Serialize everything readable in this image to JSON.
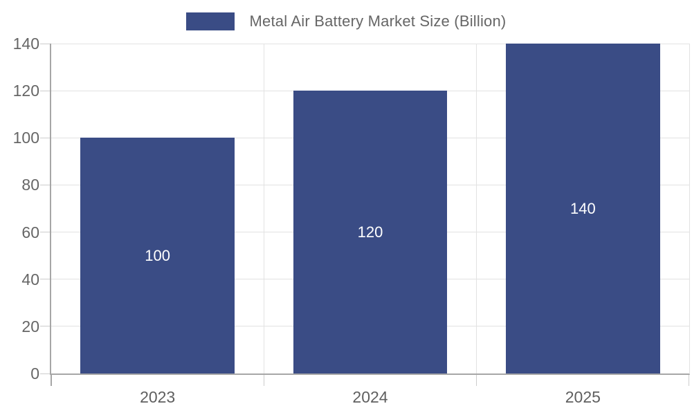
{
  "legend": {
    "label": "Metal Air Battery Market Size (Billion)"
  },
  "chart_data": {
    "type": "bar",
    "title": "Metal Air Battery Market Size (Billion)",
    "categories": [
      "2023",
      "2024",
      "2025"
    ],
    "values": [
      100,
      120,
      140
    ],
    "data_labels": [
      "100",
      "120",
      "140"
    ],
    "xlabel": "",
    "ylabel": "",
    "ylim": [
      0,
      140
    ],
    "yticks": [
      0,
      20,
      40,
      60,
      80,
      100,
      120,
      140
    ],
    "ytick_labels": [
      "0",
      "20",
      "40",
      "60",
      "80",
      "100",
      "120",
      "140"
    ],
    "grid": true,
    "legend_position": "top-center",
    "colors": {
      "bar": "#3a4c85",
      "bar_label": "#ffffff",
      "axis_line": "#a6a6a6",
      "gridline": "#e2e2e2",
      "tick": "#cccccc",
      "tick_text": "#666666"
    }
  }
}
